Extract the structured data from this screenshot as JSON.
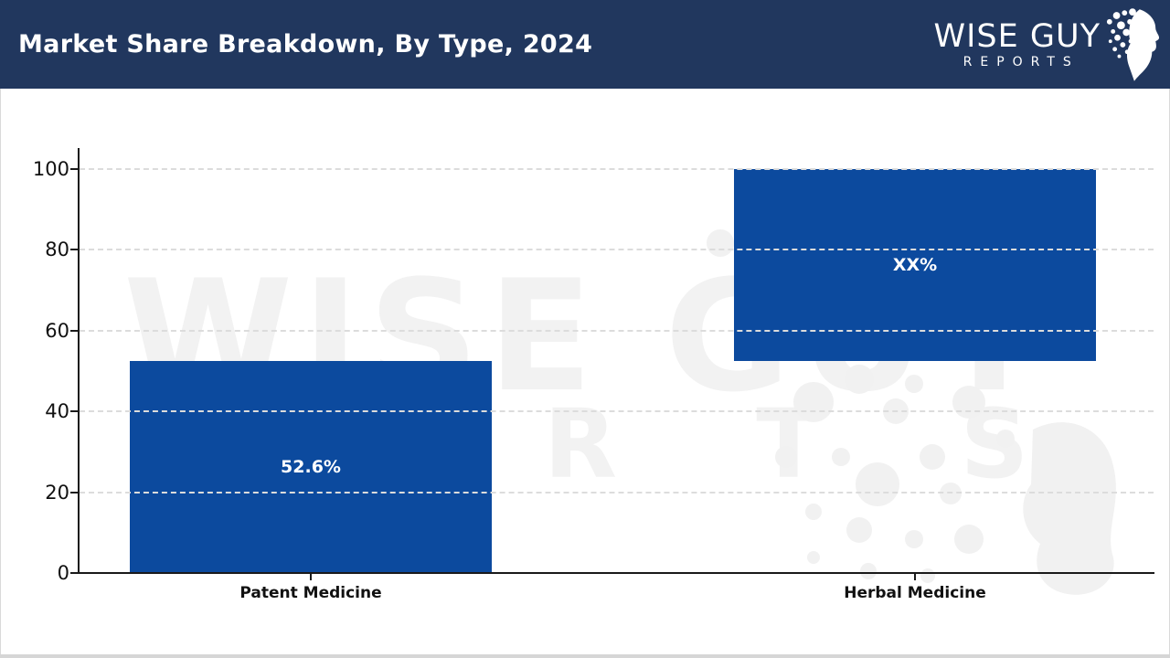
{
  "header": {
    "title": "Market Share Breakdown, By Type, 2024",
    "bg_color": "#21375E",
    "logo": {
      "line1": "WISE GUY",
      "line2": "REPORTS"
    }
  },
  "watermark": {
    "line1": "WISE GUY",
    "line2": "R T S"
  },
  "chart_data": {
    "type": "bar",
    "subtype": "waterfall-range",
    "title": "Market Share Breakdown, By Type, 2024",
    "categories": [
      "Patent Medicine",
      "Herbal Medicine"
    ],
    "series": [
      {
        "name": "Market Share",
        "segments": [
          {
            "category": "Patent Medicine",
            "start": 0,
            "end": 52.6,
            "label": "52.6%"
          },
          {
            "category": "Herbal Medicine",
            "start": 52.6,
            "end": 100,
            "label": "XX%"
          }
        ]
      }
    ],
    "xlabel": "",
    "ylabel": "",
    "ylim": [
      0,
      100
    ],
    "yticks": [
      0,
      20,
      40,
      60,
      80,
      100
    ],
    "grid": "horizontal dashed, drawn over bars",
    "legend": "none",
    "bar_color": "#0C4A9E",
    "bar_label_color": "#ffffff",
    "axis_color": "#1a1a1a",
    "gridline_color": "#dcdcdc"
  }
}
